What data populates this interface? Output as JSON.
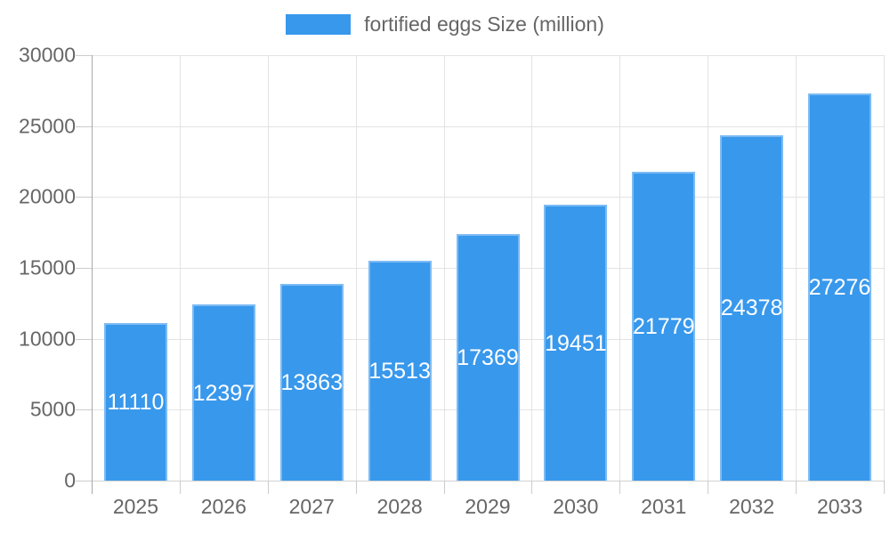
{
  "chart_data": {
    "type": "bar",
    "title": "fortified eggs Size (million)",
    "series_name": "fortified eggs Size (million)",
    "categories": [
      "2025",
      "2026",
      "2027",
      "2028",
      "2029",
      "2030",
      "2031",
      "2032",
      "2033"
    ],
    "values": [
      11110,
      12397,
      13863,
      15513,
      17369,
      19451,
      21779,
      24378,
      27276
    ],
    "xlabel": "",
    "ylabel": "",
    "ylim": [
      0,
      30000
    ],
    "yticks": [
      0,
      5000,
      10000,
      15000,
      20000,
      25000,
      30000
    ],
    "grid": true,
    "legend_position": "top",
    "bar_value_labels_inside": true,
    "colors": {
      "bar_fill": "#3898ec",
      "bar_border": "#7dbbf3",
      "bar_label": "#ffffff",
      "grid_line": "#e3e3e3",
      "baseline": "#d2d2d2",
      "axis_line": "#a9a9a9",
      "tick_mark": "#cccccc",
      "tick_label": "#666666",
      "legend_text": "#666666",
      "background": "#ffffff"
    }
  }
}
